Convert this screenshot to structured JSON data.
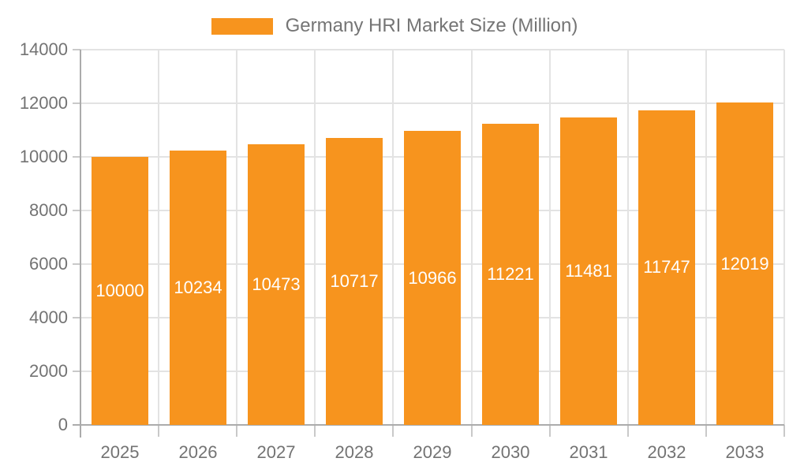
{
  "legend": {
    "label": "Germany HRI Market Size (Million)"
  },
  "chart_data": {
    "type": "bar",
    "title": "Germany HRI Market Size (Million)",
    "categories": [
      "2025",
      "2026",
      "2027",
      "2028",
      "2029",
      "2030",
      "2031",
      "2032",
      "2033"
    ],
    "values": [
      10000,
      10234,
      10473,
      10717,
      10966,
      11221,
      11481,
      11747,
      12019
    ],
    "xlabel": "",
    "ylabel": "",
    "ylim": [
      0,
      14000
    ],
    "yticks": [
      0,
      2000,
      4000,
      6000,
      8000,
      10000,
      12000,
      14000
    ],
    "grid": true,
    "legend_position": "top-center",
    "bar_label_position": "inside-middle",
    "colors": {
      "bar": "#F7941E",
      "bar_label": "#FFFFFF",
      "grid_line": "#E3E3E3",
      "axis_line": "#ABABAB",
      "tick_line": "#C9C9C9",
      "axis_text": "#737373",
      "legend_text": "#757575",
      "background": "#FFFFFF"
    }
  }
}
